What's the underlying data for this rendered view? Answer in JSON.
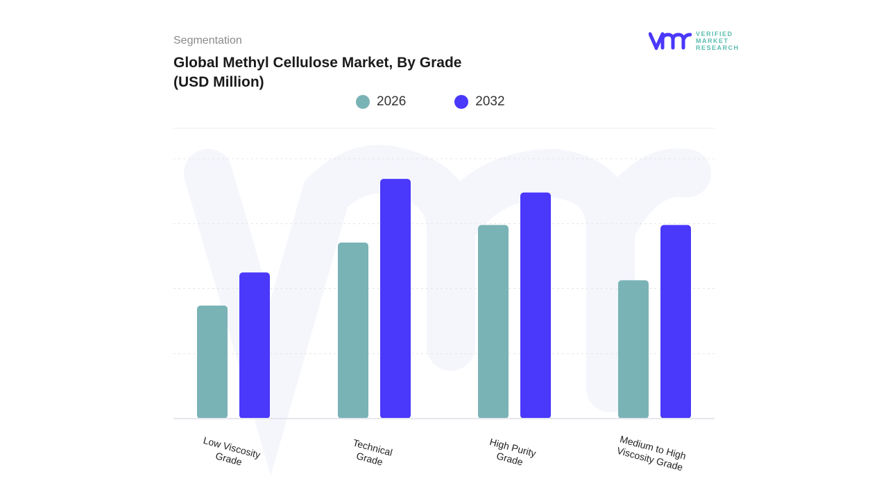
{
  "header": {
    "segment_label": "Segmentation",
    "title": "Global Methyl Cellulose Market, By Grade (USD Million)"
  },
  "logo": {
    "line1": "VERIFIED",
    "line2": "MARKET",
    "line3": "RESEARCH"
  },
  "chart_data": {
    "type": "bar",
    "title": "Global Methyl Cellulose Market, By Grade (USD Million)",
    "categories": [
      "Low Viscosity Grade",
      "Technical Grade",
      "High Purity Grade",
      "Medium to High Viscosity Grade"
    ],
    "series": [
      {
        "name": "2026",
        "color": "#7ab3b6",
        "values": [
          1.74,
          2.71,
          2.98,
          2.13
        ]
      },
      {
        "name": "2032",
        "color": "#4a38fb",
        "values": [
          2.25,
          3.69,
          3.48,
          2.98
        ]
      }
    ],
    "ylim": [
      0,
      4
    ],
    "grid": true,
    "legend": "top-center",
    "xlabel": "",
    "ylabel": ""
  }
}
